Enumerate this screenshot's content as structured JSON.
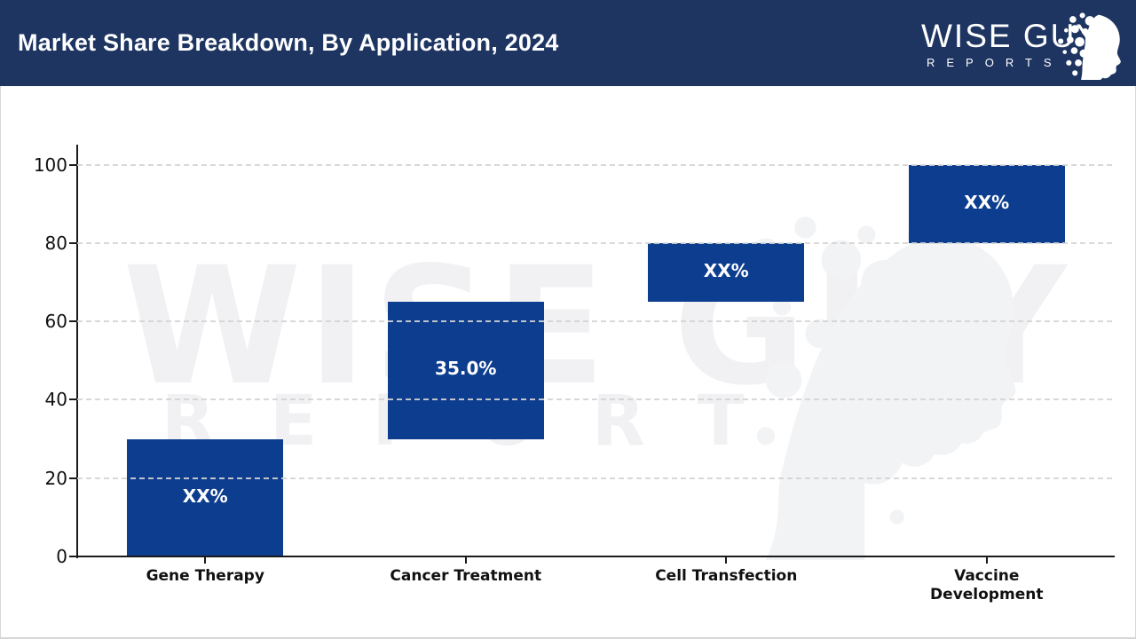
{
  "header": {
    "title": "Market Share Breakdown, By Application, 2024",
    "bg_color": "#1e3562",
    "logo": {
      "line1": "WISE GUY",
      "line2": "REPORTS"
    }
  },
  "watermark": {
    "line1": "WISE GUY",
    "line2": "REPORTS"
  },
  "chart_data": {
    "type": "bar",
    "subtype": "waterfall",
    "title": "Market Share Breakdown, By Application, 2024",
    "categories": [
      "Gene Therapy",
      "Cancer Treatment",
      "Cell Transfection",
      "Vaccine Development"
    ],
    "tick_labels": [
      "Gene Therapy",
      "Cancer Treatment",
      "Cell Transfection",
      "Vaccine\nDevelopment"
    ],
    "segments": [
      {
        "category": "Gene Therapy",
        "start": 0,
        "end": 30,
        "size": 30,
        "label": "XX%"
      },
      {
        "category": "Cancer Treatment",
        "start": 30,
        "end": 65,
        "size": 35,
        "label": "35.0%"
      },
      {
        "category": "Cell Transfection",
        "start": 65,
        "end": 80,
        "size": 15,
        "label": "XX%"
      },
      {
        "category": "Vaccine Development",
        "start": 80,
        "end": 100,
        "size": 20,
        "label": "XX%"
      }
    ],
    "yticks": [
      0,
      20,
      40,
      60,
      80,
      100
    ],
    "ylim": [
      0,
      105
    ],
    "xlabel": "",
    "ylabel": "",
    "grid": "horizontal-dashed",
    "legend": false,
    "bar_color": "#0d3d8e",
    "bar_label_color": "#ffffff",
    "axis_color": "#1a1a1a"
  }
}
